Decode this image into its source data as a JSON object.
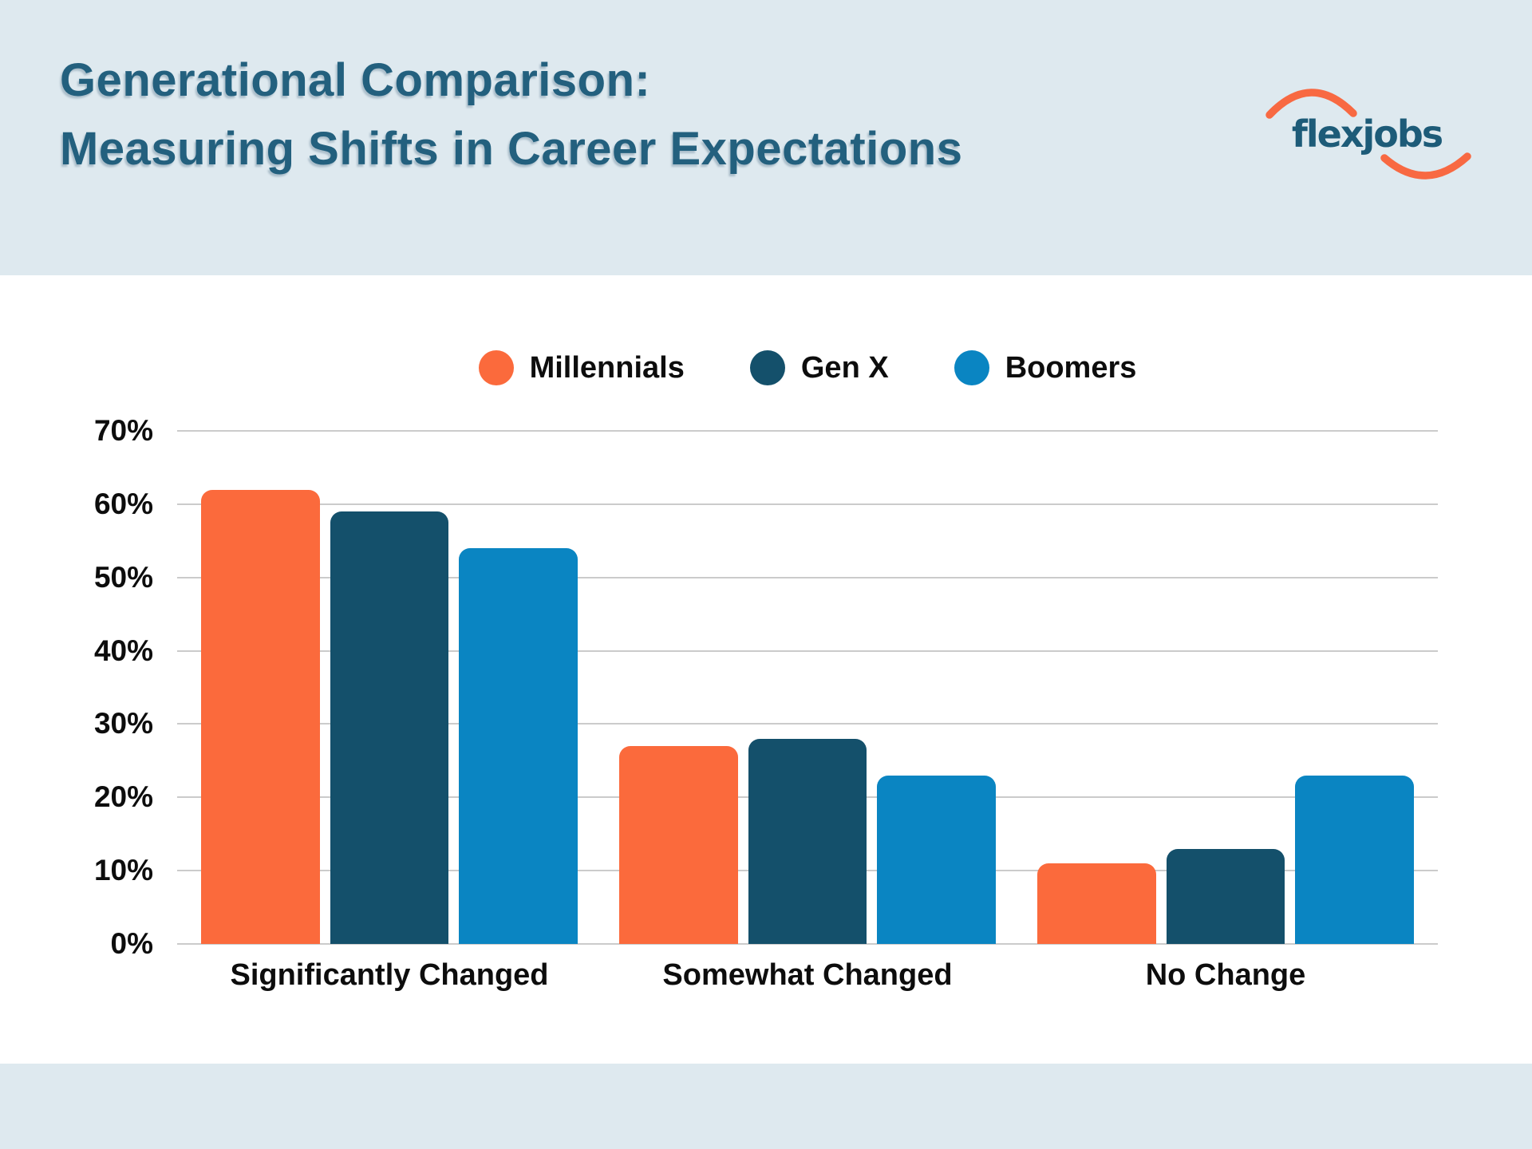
{
  "header": {
    "title_line1": "Generational Comparison:",
    "title_line2": "Measuring Shifts in Career Expectations",
    "logo_text": "flexjobs"
  },
  "colors": {
    "band_bg": "#DEE9EF",
    "title_text": "#23607E",
    "logo_text": "#1D5B78",
    "logo_arc": "#F86942",
    "gridline": "#CBCBCB",
    "label_text": "#0D0D0D"
  },
  "chart_data": {
    "type": "bar",
    "title": "Generational Comparison: Measuring Shifts in Career Expectations",
    "categories": [
      "Significantly Changed",
      "Somewhat Changed",
      "No Change"
    ],
    "series": [
      {
        "name": "Millennials",
        "color": "#FB6A3C",
        "values": [
          62,
          27,
          11
        ]
      },
      {
        "name": "Gen X",
        "color": "#14506B",
        "values": [
          59,
          28,
          13
        ]
      },
      {
        "name": "Boomers",
        "color": "#0A85C2",
        "values": [
          54,
          23,
          23
        ]
      }
    ],
    "xlabel": "",
    "ylabel": "",
    "unit": "%",
    "ylim": [
      0,
      70
    ],
    "yticks": [
      {
        "value": 70,
        "label": "70%"
      },
      {
        "value": 60,
        "label": "60%"
      },
      {
        "value": 50,
        "label": "50%"
      },
      {
        "value": 40,
        "label": "40%"
      },
      {
        "value": 30,
        "label": "30%"
      },
      {
        "value": 20,
        "label": "20%"
      },
      {
        "value": 10,
        "label": "10%"
      },
      {
        "value": 0,
        "label": "0%"
      }
    ],
    "grid": true,
    "legend_position": "top-center"
  }
}
